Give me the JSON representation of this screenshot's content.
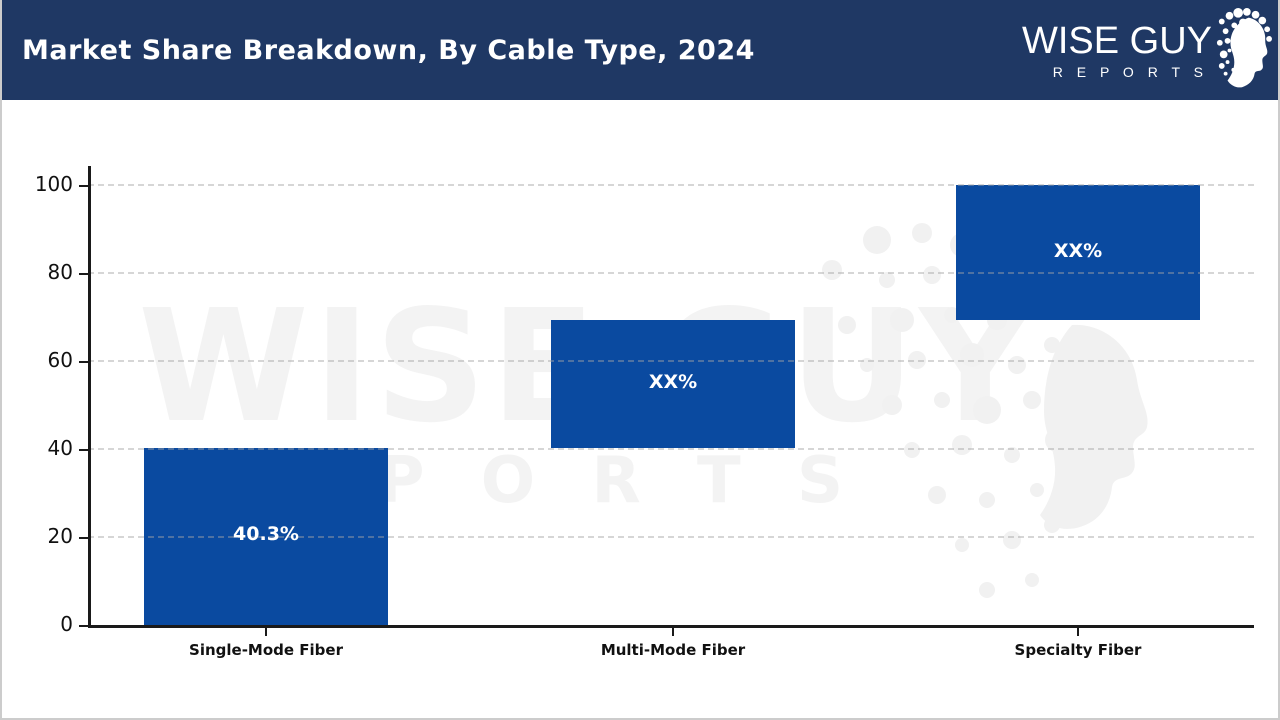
{
  "header": {
    "title": "Market Share Breakdown, By Cable Type, 2024",
    "bg_color": "#1f3864",
    "logo": {
      "name": "WISE GUY",
      "sub": "R E P O R T S"
    }
  },
  "watermark": {
    "line1": "WISE GUY",
    "line2": "R E P O R T S"
  },
  "chart_data": {
    "type": "bar",
    "subtype": "floating-waterfall",
    "title": "Market Share Breakdown, By Cable Type, 2024",
    "categories": [
      "Single-Mode Fiber",
      "Multi-Mode Fiber",
      "Specialty Fiber"
    ],
    "series": [
      {
        "name": "Market share",
        "segments": [
          {
            "category": "Single-Mode Fiber",
            "from": 0,
            "to": 40.3,
            "label": "40.3%"
          },
          {
            "category": "Multi-Mode Fiber",
            "from": 40.3,
            "to": 69.3,
            "label": "XX%"
          },
          {
            "category": "Specialty Fiber",
            "from": 69.3,
            "to": 100,
            "label": "XX%"
          }
        ]
      }
    ],
    "ylim": [
      0,
      100
    ],
    "yticks": [
      0,
      20,
      40,
      60,
      80,
      100
    ],
    "xlabel": "",
    "ylabel": "",
    "grid": "horizontal-dashed-over-bars",
    "legend": "none",
    "bar_color": "#0a4aa0",
    "bar_label_color": "#ffffff",
    "axis_color": "#1a1a1a",
    "grid_color": "#d5d5d5",
    "watermark_color": "#f3f3f3"
  }
}
